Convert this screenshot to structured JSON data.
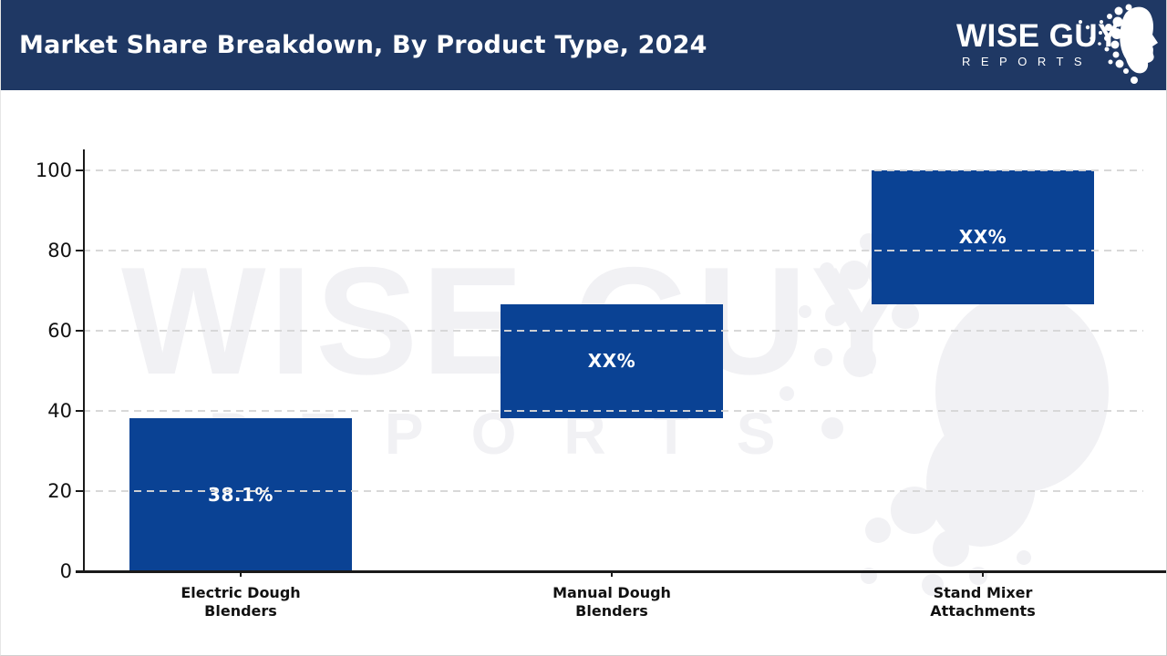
{
  "header": {
    "title": "Market Share Breakdown, By Product Type, 2024",
    "logo": {
      "line1": "WISE GUY",
      "line2": "REPORTS"
    }
  },
  "watermark": {
    "line1": "WISE GUY",
    "line2": "REPORTS"
  },
  "chart_data": {
    "type": "bar",
    "subtype": "stacked-waterfall",
    "title": "Market Share Breakdown, By Product Type, 2024",
    "categories": [
      {
        "lines": [
          "Electric Dough",
          "Blenders"
        ]
      },
      {
        "lines": [
          "Manual Dough",
          "Blenders"
        ]
      },
      {
        "lines": [
          "Stand Mixer",
          "Attachments"
        ]
      }
    ],
    "segments": [
      {
        "category": "Electric Dough Blenders",
        "start": 0,
        "end": 38.1,
        "label": "38.1%"
      },
      {
        "category": "Manual Dough Blenders",
        "start": 38.1,
        "end": 66.7,
        "label": "XX%"
      },
      {
        "category": "Stand Mixer Attachments",
        "start": 66.7,
        "end": 100,
        "label": "XX%"
      }
    ],
    "yticks": [
      0,
      20,
      40,
      60,
      80,
      100
    ],
    "ylim": [
      0,
      100
    ],
    "xlabel": "",
    "ylabel": "",
    "grid": "horizontal-dashed",
    "legend": "none",
    "colors": {
      "bar": "#0a4294",
      "bar_label": "#ffffff",
      "header_bg": "#1f3864",
      "axis": "#1a1a1a",
      "gridline": "#d6d6d6",
      "watermark": "#f1f1f4"
    }
  }
}
